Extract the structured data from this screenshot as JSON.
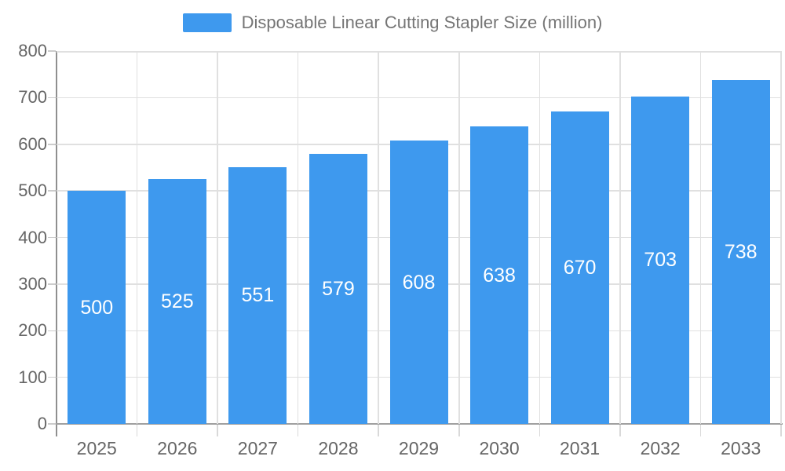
{
  "legend": {
    "label": "Disposable Linear Cutting Stapler Size (million)"
  },
  "chart_data": {
    "type": "bar",
    "title": "Disposable Linear Cutting Stapler Size (million)",
    "series_name": "Disposable Linear Cutting Stapler Size (million)",
    "categories": [
      "2025",
      "2026",
      "2027",
      "2028",
      "2029",
      "2030",
      "2031",
      "2032",
      "2033"
    ],
    "values": [
      500,
      525,
      551,
      579,
      608,
      638,
      670,
      703,
      738
    ],
    "xlabel": "",
    "ylabel": "",
    "ylim": [
      0,
      800
    ],
    "yticks": [
      0,
      100,
      200,
      300,
      400,
      500,
      600,
      700,
      800
    ],
    "grid": true,
    "legend_position": "top",
    "bar_color": "#3E99EE",
    "value_label_color": "#FFFFFF",
    "axis_label_color": "#666666",
    "legend_text_color": "#757575"
  }
}
